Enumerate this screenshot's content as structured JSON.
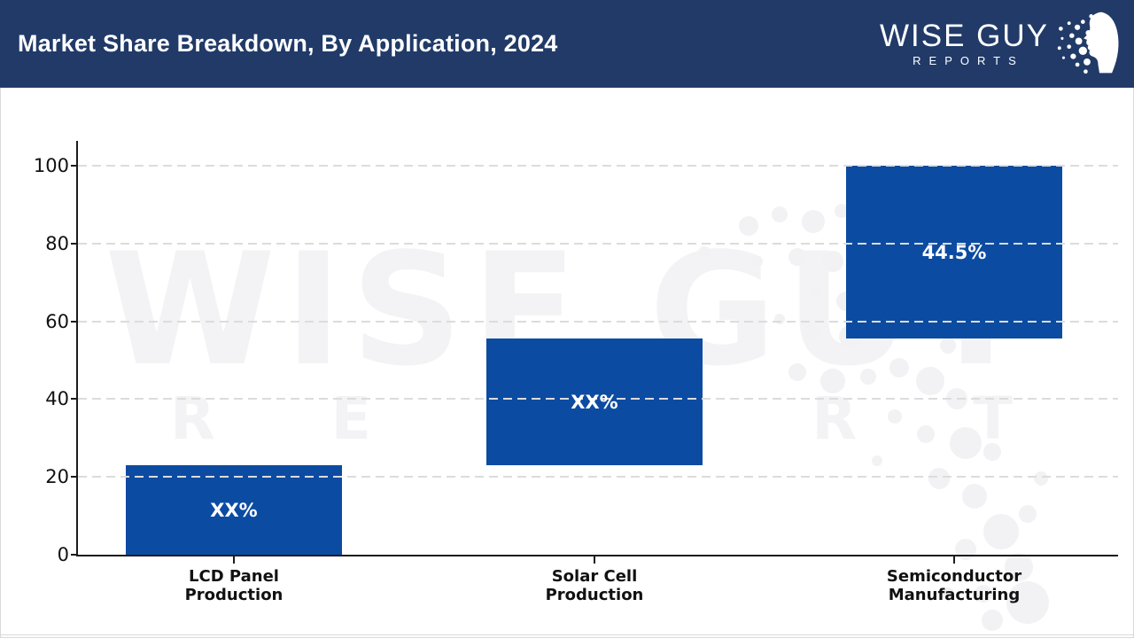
{
  "header": {
    "title": "Market Share Breakdown, By Application, 2024",
    "logo": {
      "name": "WISE GUY",
      "sub": "REPORTS"
    }
  },
  "watermark": {
    "big": "WISE GUY",
    "sub": "R E P O R T S"
  },
  "chart_data": {
    "type": "bar",
    "subtype": "floating-segment-breakdown",
    "title": "Market Share Breakdown, By Application, 2024",
    "categories": [
      "LCD Panel\nProduction",
      "Solar Cell\nProduction",
      "Semiconductor\nManufacturing"
    ],
    "bars": [
      {
        "category": "LCD Panel Production",
        "start": 0,
        "end": 23,
        "label": "XX%"
      },
      {
        "category": "Solar Cell Production",
        "start": 23,
        "end": 55.5,
        "label": "XX%"
      },
      {
        "category": "Semiconductor Manufacturing",
        "start": 55.5,
        "end": 100,
        "label": "44.5%"
      }
    ],
    "ylim": [
      0,
      100
    ],
    "yticks": [
      0,
      20,
      40,
      60,
      80,
      100
    ],
    "grid": {
      "horizontal": true,
      "style": "dashed",
      "color": "#dcdcdc"
    },
    "colors": {
      "bar": "#0c4ba2",
      "bar_label": "#ffffff",
      "axis": "#1c1c1c",
      "tick_label": "#111111",
      "header_bg": "#213a68",
      "watermark": "#f3f3f5"
    },
    "legend": null
  }
}
